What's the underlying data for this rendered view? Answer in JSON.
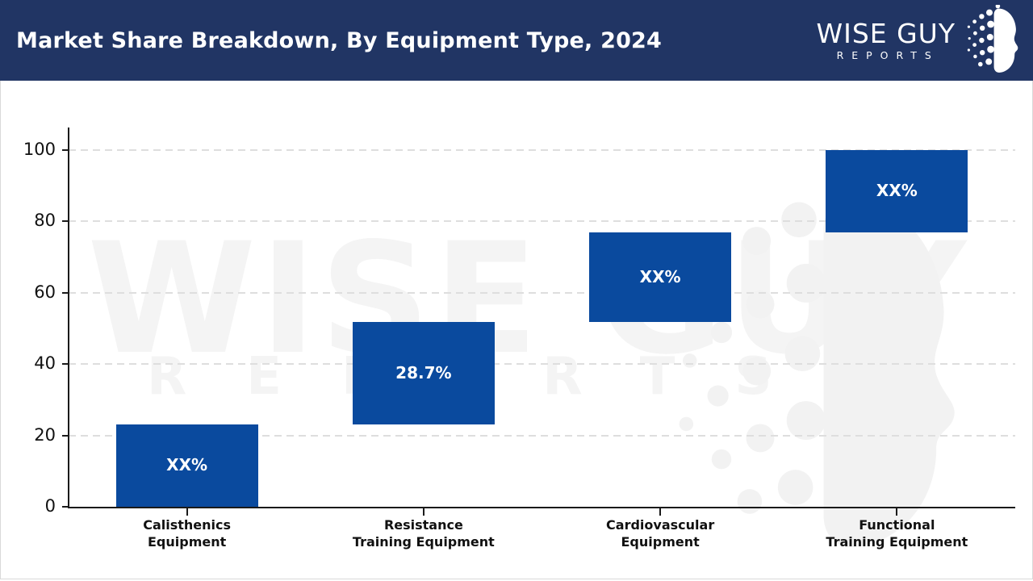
{
  "header": {
    "title": "Market Share Breakdown, By Equipment Type, 2024",
    "background_color": "#213564",
    "logo": {
      "line1": "WISE GUY",
      "line2": "REPORTS"
    }
  },
  "watermark": {
    "line1": "WISE GUY",
    "line2": "REPORTS"
  },
  "chart_data": {
    "type": "bar",
    "subtype": "floating-waterfall",
    "title": "Market Share Breakdown, By Equipment Type, 2024",
    "xlabel": "",
    "ylabel": "",
    "ylim": [
      0,
      100
    ],
    "yticks": [
      0,
      20,
      40,
      60,
      80,
      100
    ],
    "grid": "horizontal-dashed",
    "bar_color": "#0a4a9e",
    "value_label_color": "#ffffff",
    "categories": [
      "Calisthenics Equipment",
      "Resistance Training Equipment",
      "Cardiovascular Equipment",
      "Functional Training Equipment"
    ],
    "bars": [
      {
        "category": "Calisthenics Equipment",
        "label_line1": "Calisthenics",
        "label_line2": "Equipment",
        "start": 0,
        "end": 23,
        "value": 23,
        "value_label": "XX%"
      },
      {
        "category": "Resistance Training Equipment",
        "label_line1": "Resistance",
        "label_line2": "Training Equipment",
        "start": 23,
        "end": 51.7,
        "value": 28.7,
        "value_label": "28.7%"
      },
      {
        "category": "Cardiovascular Equipment",
        "label_line1": "Cardiovascular",
        "label_line2": "Equipment",
        "start": 51.7,
        "end": 77,
        "value": 25.3,
        "value_label": "XX%"
      },
      {
        "category": "Functional Training Equipment",
        "label_line1": "Functional",
        "label_line2": "Training Equipment",
        "start": 77,
        "end": 100,
        "value": 23,
        "value_label": "XX%"
      }
    ]
  }
}
